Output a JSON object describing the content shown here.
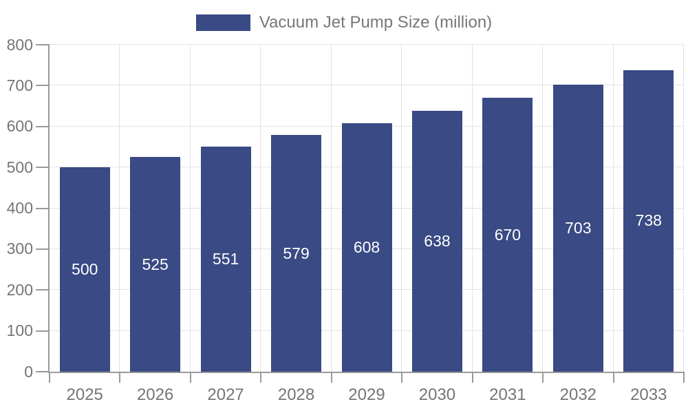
{
  "chart_data": {
    "type": "bar",
    "title": "",
    "legend": "Vacuum Jet Pump Size (million)",
    "categories": [
      "2025",
      "2026",
      "2027",
      "2028",
      "2029",
      "2030",
      "2031",
      "2032",
      "2033"
    ],
    "values": [
      500,
      525,
      551,
      579,
      608,
      638,
      670,
      703,
      738
    ],
    "xlabel": "",
    "ylabel": "",
    "ylim": [
      0,
      800
    ],
    "ytick_step": 100,
    "yticks": [
      0,
      100,
      200,
      300,
      400,
      500,
      600,
      700,
      800
    ],
    "grid": "on",
    "legend_position": "top-center",
    "value_labels": "inside-center"
  },
  "colors": {
    "bar": "#394A84",
    "grid": "#E2E2E2",
    "axis": "#999999",
    "tick_text": "#757575",
    "legend_text": "#76777B",
    "value_label": "#FFFFFF",
    "background": "#FFFFFF"
  }
}
